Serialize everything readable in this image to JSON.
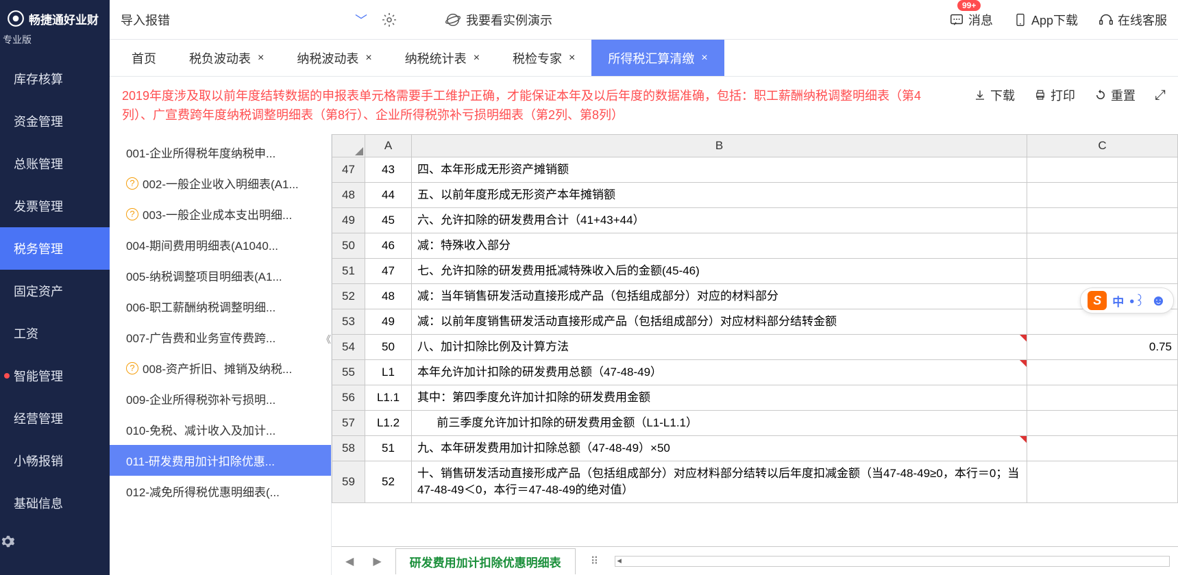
{
  "brand": {
    "name": "畅捷通好业财",
    "version": "专业版"
  },
  "sidebar": {
    "items": [
      {
        "label": "库存核算"
      },
      {
        "label": "资金管理"
      },
      {
        "label": "总账管理"
      },
      {
        "label": "发票管理"
      },
      {
        "label": "税务管理"
      },
      {
        "label": "固定资产"
      },
      {
        "label": "工资"
      },
      {
        "label": "智能管理"
      },
      {
        "label": "经营管理"
      },
      {
        "label": "小畅报销"
      },
      {
        "label": "基础信息"
      }
    ],
    "active_index": 4,
    "dot_index": 7
  },
  "topbar": {
    "search_text": "导入报错",
    "demo": "我要看实例演示",
    "message": "消息",
    "message_badge": "99+",
    "app": "App下载",
    "service": "在线客服"
  },
  "tabs": {
    "items": [
      {
        "label": "首页",
        "closable": false
      },
      {
        "label": "税负波动表",
        "closable": true
      },
      {
        "label": "纳税波动表",
        "closable": true
      },
      {
        "label": "纳税统计表",
        "closable": true
      },
      {
        "label": "税检专家",
        "closable": true
      },
      {
        "label": "所得税汇算清缴",
        "closable": true
      }
    ],
    "active_index": 5
  },
  "notice": "2019年度涉及取以前年度结转数据的申报表单元格需要手工维护正确，才能保证本年及以后年度的数据准确，包括：职工薪酬纳税调整明细表（第4列）、广宣费跨年度纳税调整明细表（第8行）、企业所得税弥补亏损明细表（第2列、第8列）",
  "actions": {
    "download": "下载",
    "print": "打印",
    "reset": "重置"
  },
  "tree": {
    "items": [
      {
        "label": "001-企业所得税年度纳税申...",
        "help": false
      },
      {
        "label": "002-一般企业收入明细表(A1...",
        "help": true
      },
      {
        "label": "003-一般企业成本支出明细...",
        "help": true
      },
      {
        "label": "004-期间费用明细表(A1040...",
        "help": false
      },
      {
        "label": "005-纳税调整项目明细表(A1...",
        "help": false
      },
      {
        "label": "006-职工薪酬纳税调整明细...",
        "help": false
      },
      {
        "label": "007-广告费和业务宣传费跨...",
        "help": false
      },
      {
        "label": "008-资产折旧、摊销及纳税...",
        "help": true
      },
      {
        "label": "009-企业所得税弥补亏损明...",
        "help": false
      },
      {
        "label": "010-免税、减计收入及加计...",
        "help": false
      },
      {
        "label": "011-研发费用加计扣除优惠...",
        "help": false
      },
      {
        "label": "012-减免所得税优惠明细表(...",
        "help": false
      }
    ],
    "selected_index": 10
  },
  "grid": {
    "columns": [
      "A",
      "B",
      "C"
    ],
    "rows": [
      {
        "r": "47",
        "a": "43",
        "b": "四、本年形成无形资产摊销额",
        "c": ""
      },
      {
        "r": "48",
        "a": "44",
        "b": "五、以前年度形成无形资产本年摊销额",
        "c": ""
      },
      {
        "r": "49",
        "a": "45",
        "b": "六、允许扣除的研发费用合计（41+43+44）",
        "c": ""
      },
      {
        "r": "50",
        "a": "46",
        "b": "减：特殊收入部分",
        "c": ""
      },
      {
        "r": "51",
        "a": "47",
        "b": "七、允许扣除的研发费用抵减特殊收入后的金额(45-46)",
        "c": ""
      },
      {
        "r": "52",
        "a": "48",
        "b": "减：当年销售研发活动直接形成产品（包括组成部分）对应的材料部分",
        "c": ""
      },
      {
        "r": "53",
        "a": "49",
        "b": "减：以前年度销售研发活动直接形成产品（包括组成部分）对应材料部分结转金额",
        "c": ""
      },
      {
        "r": "54",
        "a": "50",
        "b": "八、加计扣除比例及计算方法",
        "c": "0.75",
        "red": true
      },
      {
        "r": "55",
        "a": "L1",
        "b": "本年允许加计扣除的研发费用总额（47-48-49）",
        "c": "",
        "red": true
      },
      {
        "r": "56",
        "a": "L1.1",
        "b": "其中：第四季度允许加计扣除的研发费用金额",
        "c": ""
      },
      {
        "r": "57",
        "a": "L1.2",
        "b": "      前三季度允许加计扣除的研发费用金额（L1-L1.1）",
        "c": ""
      },
      {
        "r": "58",
        "a": "51",
        "b": "九、本年研发费用加计扣除总额（47-48-49）×50",
        "c": "",
        "red": true
      },
      {
        "r": "59",
        "a": "52",
        "b": "十、销售研发活动直接形成产品（包括组成部分）对应材料部分结转以后年度扣减金额（当47-48-49≥0，本行＝0；当47-48-49＜0，本行＝47-48-49的绝对值）",
        "c": ""
      }
    ]
  },
  "sheet_tab": "研发费用加计扣除优惠明细表",
  "float": {
    "chn": "中"
  }
}
